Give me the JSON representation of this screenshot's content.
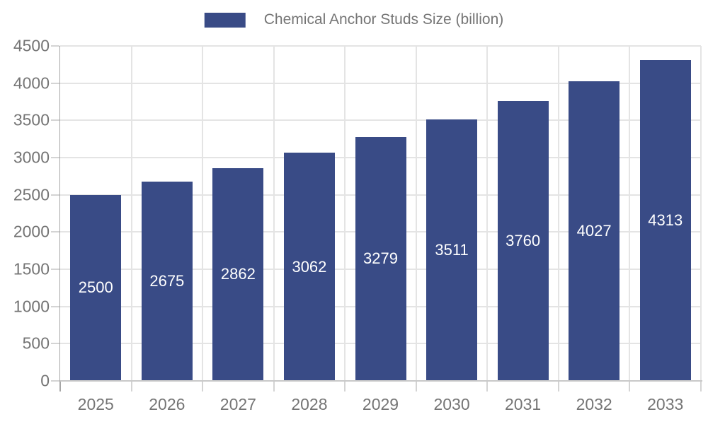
{
  "legend": {
    "label": "Chemical Anchor Studs Size (billion)"
  },
  "chart_data": {
    "type": "bar",
    "title": "Chemical Anchor Studs Size (billion)",
    "series_name": "Chemical Anchor Studs Size (billion)",
    "categories": [
      "2025",
      "2026",
      "2027",
      "2028",
      "2029",
      "2030",
      "2031",
      "2032",
      "2033"
    ],
    "values": [
      2500,
      2675,
      2862,
      3062,
      3279,
      3511,
      3760,
      4027,
      4313
    ],
    "value_labels": [
      "2500",
      "2675",
      "2862",
      "3062",
      "3279",
      "3511",
      "3760",
      "4027",
      "4313"
    ],
    "xlabel": "",
    "ylabel": "",
    "ylim": [
      0,
      4500
    ],
    "ytick_step": 500,
    "yticks": [
      0,
      500,
      1000,
      1500,
      2000,
      2500,
      3000,
      3500,
      4000,
      4500
    ],
    "grid": true,
    "legend_position": "top-center",
    "colors": {
      "bar": "#394B86",
      "value_label": "#ffffff",
      "axis_label": "#757575",
      "grid_line": "#e4e4e4",
      "y_axis_line": "#a6a6a6",
      "x_axis_line": "#c9c9c9"
    }
  }
}
